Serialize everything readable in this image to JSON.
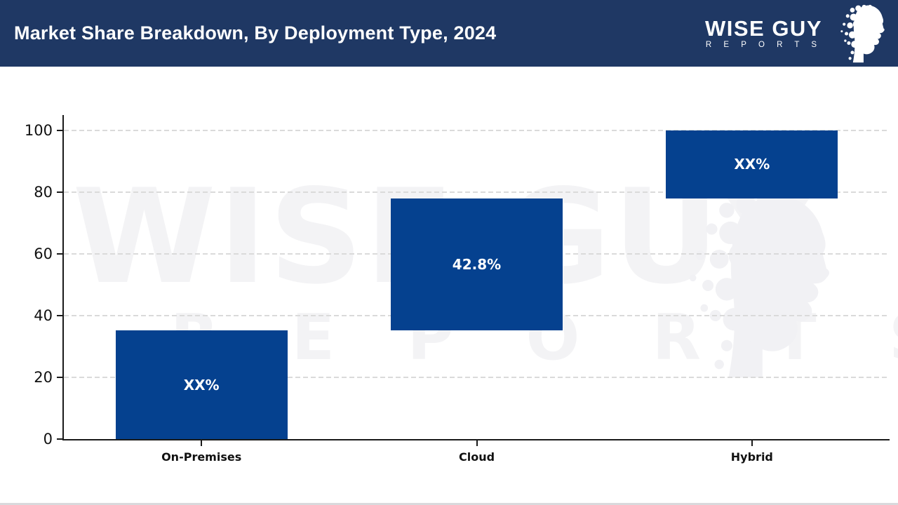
{
  "header": {
    "title": "Market Share Breakdown, By Deployment Type, 2024",
    "logo": {
      "name": "WISE GUY",
      "sub": "R E P O R T S"
    }
  },
  "watermark": {
    "name": "WISE GUY",
    "sub": "R E P O R T S"
  },
  "chart_data": {
    "type": "bar",
    "subtype": "floating-waterfall",
    "title": "Market Share Breakdown, By Deployment Type, 2024",
    "categories": [
      "On-Premises",
      "Cloud",
      "Hybrid"
    ],
    "segments": [
      {
        "category": "On-Premises",
        "start": 0,
        "end": 35.2,
        "label": "XX%"
      },
      {
        "category": "Cloud",
        "start": 35.2,
        "end": 78.0,
        "label": "42.8%"
      },
      {
        "category": "Hybrid",
        "start": 78.0,
        "end": 100.0,
        "label": "XX%"
      }
    ],
    "xlabel": "",
    "ylabel": "",
    "yticks": [
      0,
      20,
      40,
      60,
      80,
      100
    ],
    "ylim": [
      0,
      105
    ],
    "grid": "horizontal-dashed",
    "legend": "none",
    "bar_color": "#05418f",
    "bar_label_color": "#ffffff"
  },
  "colors": {
    "header_bg": "#1f3864",
    "bar": "#05418f",
    "grid": "#dadada",
    "axis": "#1a1a1a",
    "watermark": "#f3f3f5"
  }
}
